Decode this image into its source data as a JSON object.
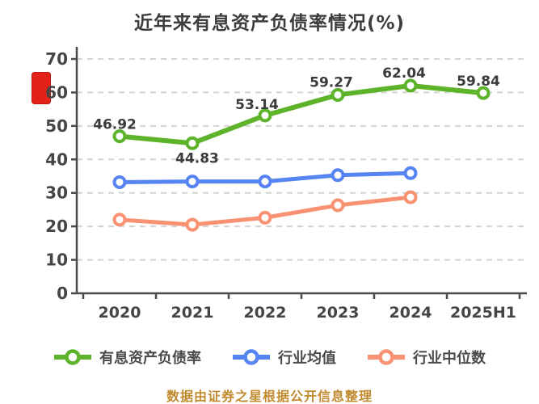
{
  "title": "近年来有息资产负债率情况(%)",
  "footer": "数据由证券之星根据公开信息整理",
  "stamp_color": "#e42318",
  "chart_data": {
    "type": "line",
    "title": "近年来有息资产负债率情况(%)",
    "categories": [
      "2020",
      "2021",
      "2022",
      "2023",
      "2024",
      "2025H1"
    ],
    "series": [
      {
        "name": "有息资产负债率",
        "color": "#5db32a",
        "values": [
          46.92,
          44.83,
          53.14,
          59.27,
          62.04,
          59.84
        ],
        "labels": [
          "46.92",
          "44.83",
          "53.14",
          "59.27",
          "62.04",
          "59.84"
        ]
      },
      {
        "name": "行业均值",
        "color": "#5684f2",
        "values": [
          33.2,
          33.4,
          33.4,
          35.3,
          35.9,
          null
        ],
        "labels": null
      },
      {
        "name": "行业中位数",
        "color": "#f89272",
        "values": [
          22.0,
          20.5,
          22.6,
          26.3,
          28.7,
          null
        ],
        "labels": null
      }
    ],
    "ylim": [
      0,
      70
    ],
    "ytick_step": 10,
    "yticks": [
      0,
      10,
      20,
      30,
      40,
      50,
      60,
      70
    ],
    "grid": "dashed-horizontal",
    "legend_position": "bottom",
    "marker": "circle-white-center"
  }
}
